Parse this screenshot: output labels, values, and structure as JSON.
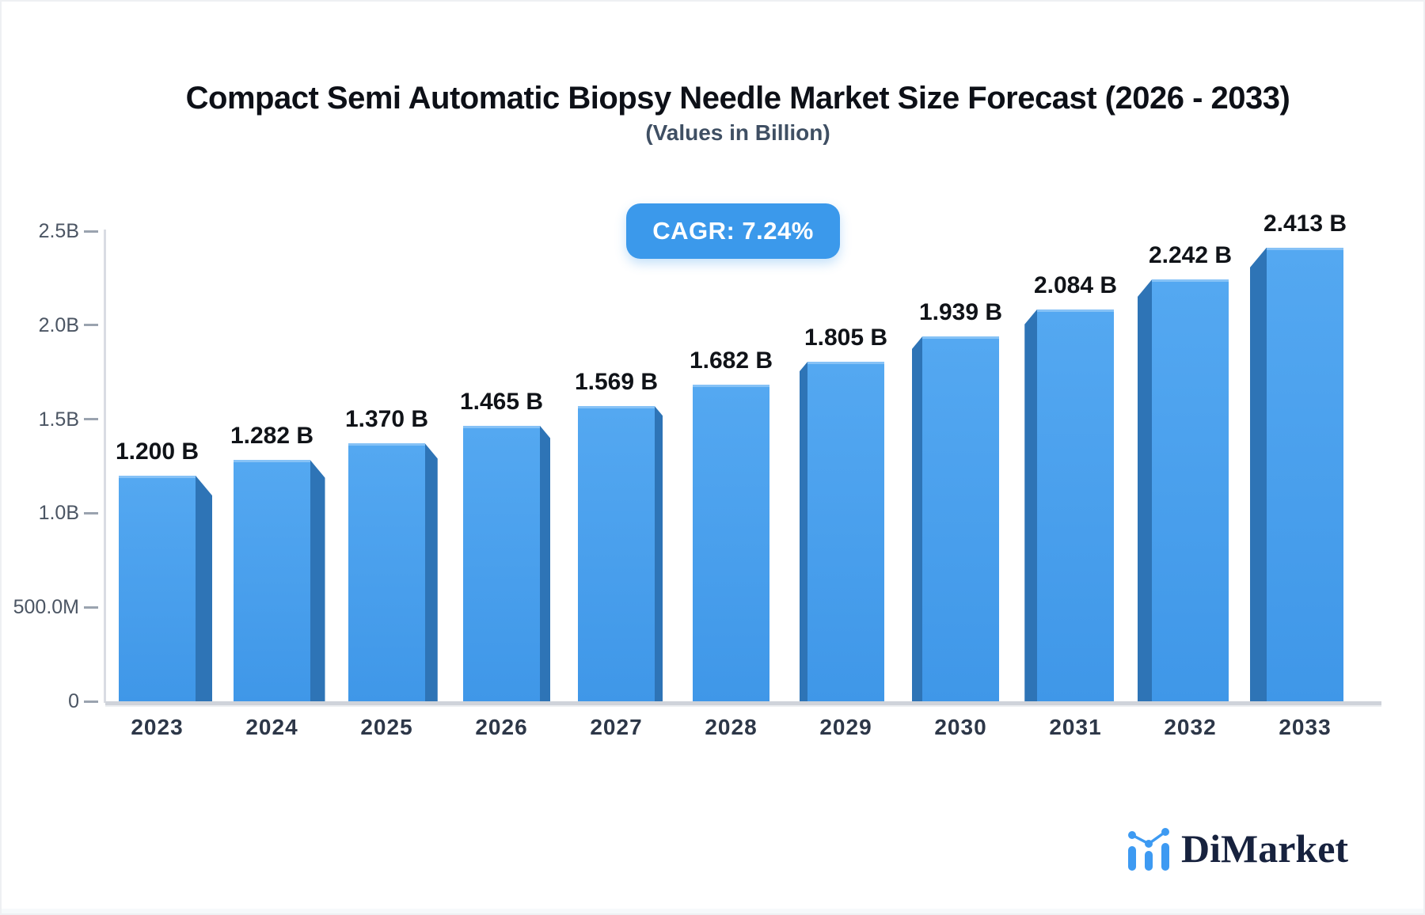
{
  "header": {
    "title": "Compact Semi Automatic Biopsy Needle Market Size Forecast (2026 - 2033)",
    "subtitle": "(Values in Billion)",
    "cagr_badge": "CAGR: 7.24%"
  },
  "chart_data": {
    "type": "bar",
    "title": "Compact Semi Automatic Biopsy Needle Market Size Forecast (2026 - 2033)",
    "subtitle": "(Values in Billion)",
    "cagr_percent": 7.24,
    "categories": [
      "2023",
      "2024",
      "2025",
      "2026",
      "2027",
      "2028",
      "2029",
      "2030",
      "2031",
      "2032",
      "2033"
    ],
    "values": [
      1.2,
      1.282,
      1.37,
      1.465,
      1.569,
      1.682,
      1.805,
      1.939,
      2.084,
      2.242,
      2.413
    ],
    "value_labels": [
      "1.200 B",
      "1.282 B",
      "1.370 B",
      "1.465 B",
      "1.569 B",
      "1.682 B",
      "1.805 B",
      "1.939 B",
      "2.084 B",
      "2.242 B",
      "2.413 B"
    ],
    "unit": "Billion",
    "xlabel": "",
    "ylabel": "",
    "ylim": [
      0,
      2.5
    ],
    "yticks": [
      {
        "value": 0,
        "label": "0"
      },
      {
        "value": 0.5,
        "label": "500.0M"
      },
      {
        "value": 1.0,
        "label": "1.0B"
      },
      {
        "value": 1.5,
        "label": "1.5B"
      },
      {
        "value": 2.0,
        "label": "2.0B"
      },
      {
        "value": 2.5,
        "label": "2.5B"
      }
    ],
    "grid": false,
    "legend": null,
    "bar_style": "3d-perspective"
  },
  "colors": {
    "bar_face_top": "#54a8f1",
    "bar_face_bottom": "#3f97e8",
    "bar_top_edge": "#86c2f6",
    "bar_side": "#2e74b6",
    "badge_bg": "#3b99eb",
    "badge_text": "#ffffff",
    "logo_navy": "#17223e",
    "logo_blue": "#3d9af2"
  },
  "footer": {
    "brand": "DiMarket"
  }
}
